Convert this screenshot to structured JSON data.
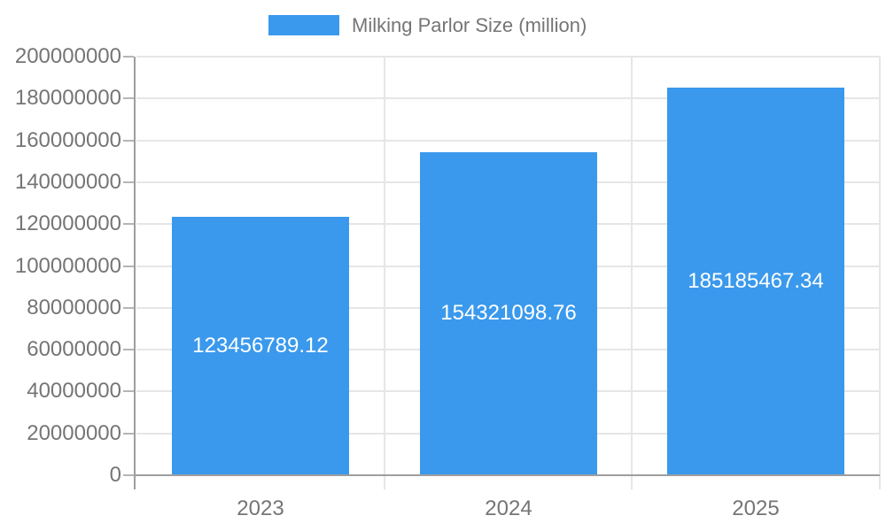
{
  "legend": {
    "label": "Milking Parlor Size (million)"
  },
  "colors": {
    "bar": "#3a99ec",
    "bar_value_text": "#ffffff",
    "grid_line": "#e6e6e6",
    "axis_line": "#9e9e9e",
    "tick_mark": "#b5b5b5",
    "tick_text": "#757575",
    "legend_text": "#757575",
    "background": "#ffffff"
  },
  "chart_data": {
    "type": "bar",
    "title": "",
    "xlabel": "",
    "ylabel": "",
    "categories": [
      "2023",
      "2024",
      "2025"
    ],
    "series": [
      {
        "name": "Milking Parlor Size (million)",
        "values": [
          123456789.12,
          154321098.76,
          185185467.34
        ]
      }
    ],
    "bar_value_labels": [
      "123456789.12",
      "154321098.76",
      "185185467.34"
    ],
    "ylim": [
      0,
      200000000
    ],
    "y_tick_step": 20000000,
    "y_ticks": [
      0,
      20000000,
      40000000,
      60000000,
      80000000,
      100000000,
      120000000,
      140000000,
      160000000,
      180000000,
      200000000
    ],
    "y_tick_labels": [
      "0",
      "20000000",
      "40000000",
      "60000000",
      "80000000",
      "100000000",
      "120000000",
      "140000000",
      "160000000",
      "180000000",
      "200000000"
    ],
    "grid": true,
    "vertical_category_dividers": true,
    "legend_position": "top-center",
    "bar_value_label_position": "center"
  }
}
